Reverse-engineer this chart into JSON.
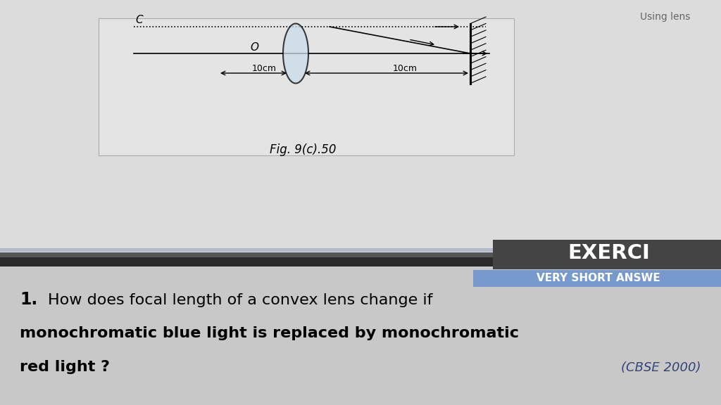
{
  "bg_color": "#b8b8b8",
  "top_section_bg": "#e0e0e0",
  "bottom_section_bg": "#c8c8c8",
  "fig_caption": "Fig. 9(c).50",
  "exercise_label": "EXERCI",
  "very_short_label": "VERY SHORT ANSWE",
  "question_number": "1.",
  "question_line1": "How does focal length of a convex lens change if",
  "question_line2": "monochromatic blue light is replaced by monochromatic",
  "question_line3": "red light ?",
  "cbse_label": "(CBSE 2000)",
  "label_C": "C",
  "label_O": "O",
  "label_10cm_left": "10cm",
  "label_10cm_right": "10cm",
  "using_lens_text": "Using lens"
}
